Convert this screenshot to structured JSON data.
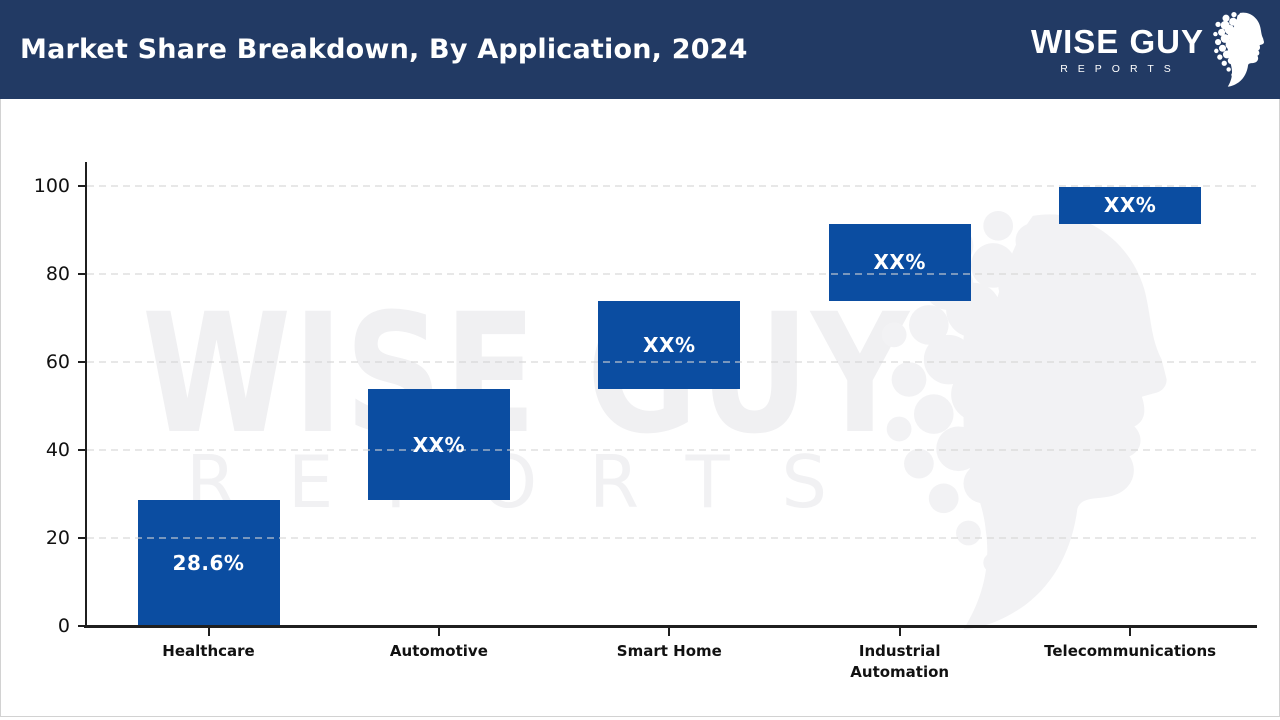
{
  "header": {
    "title": "Market Share Breakdown, By Application, 2024",
    "bg_color": "#223a64",
    "logo": {
      "wordmark": "WISE GUY",
      "subtext": "REPORTS"
    }
  },
  "watermark": {
    "wordmark": "WISE GUY",
    "subtext": "REPORTS"
  },
  "chart_data": {
    "type": "bar",
    "variant": "waterfall",
    "title": "Market Share Breakdown, By Application, 2024",
    "categories": [
      "Healthcare",
      "Automotive",
      "Smart Home",
      "Industrial Automation",
      "Telecommunications"
    ],
    "xtick_labels": [
      "Healthcare",
      "Automotive",
      "Smart Home",
      "Industrial\nAutomation",
      "Telecommunications"
    ],
    "segments": [
      {
        "category": "Healthcare",
        "start": 0,
        "end": 28.6,
        "label": "28.6%"
      },
      {
        "category": "Automotive",
        "start": 28.6,
        "end": 53.9,
        "label": "XX%"
      },
      {
        "category": "Smart Home",
        "start": 53.9,
        "end": 73.9,
        "label": "XX%"
      },
      {
        "category": "Industrial Automation",
        "start": 73.9,
        "end": 91.4,
        "label": "XX%"
      },
      {
        "category": "Telecommunications",
        "start": 91.4,
        "end": 99.8,
        "label": "XX%"
      }
    ],
    "yticks": [
      0,
      20,
      40,
      60,
      80,
      100
    ],
    "ylim": [
      0,
      105
    ],
    "xlabel": "",
    "ylabel": "",
    "grid": "horizontal-dashed",
    "legend": "none",
    "bar_color": "#0b4da1",
    "bar_label_color": "#ffffff",
    "axis_color": "#1f1f1f"
  }
}
